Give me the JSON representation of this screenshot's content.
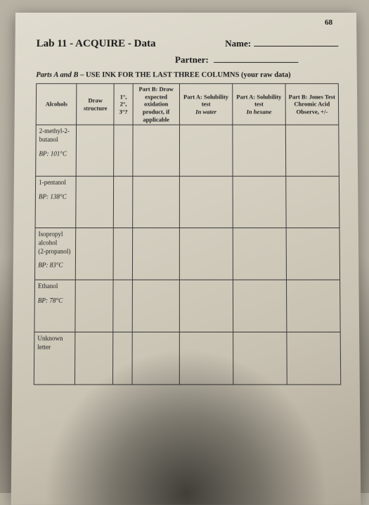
{
  "page_number": "68",
  "lab_title": "Lab 11 - ACQUIRE - Data",
  "name_label": "Name:",
  "partner_label": "Partner:",
  "instruction_prefix": "Parts A and B",
  "instruction_rest": " – USE INK FOR THE LAST THREE COLUMNS (your raw data)",
  "headers": {
    "alcohols": "Alcohols",
    "draw": "Draw structure",
    "degree": "1°, 2°, 3°?",
    "partb_draw": "Part B: Draw expected oxidation product, if applicable",
    "parta_water": "Part A: Solubility test",
    "parta_water_sub": "In water",
    "parta_hexane": "Part A: Solubility test",
    "parta_hexane_sub": "In hexane",
    "jones": "Part B: Jones Test",
    "jones_sub": "Chromic Acid Observe, +/-"
  },
  "rows": [
    {
      "name": "2-methyl-2-butanol",
      "bp": "BP: 101°C"
    },
    {
      "name": "1-pentanol",
      "bp": "BP: 138°C"
    },
    {
      "name": "Isopropyl alcohol",
      "sub": "(2-propanol)",
      "bp": "BP: 83°C"
    },
    {
      "name": "Ethanol",
      "bp": "BP: 78°C"
    },
    {
      "name": "Unknown letter",
      "bp": ""
    }
  ]
}
